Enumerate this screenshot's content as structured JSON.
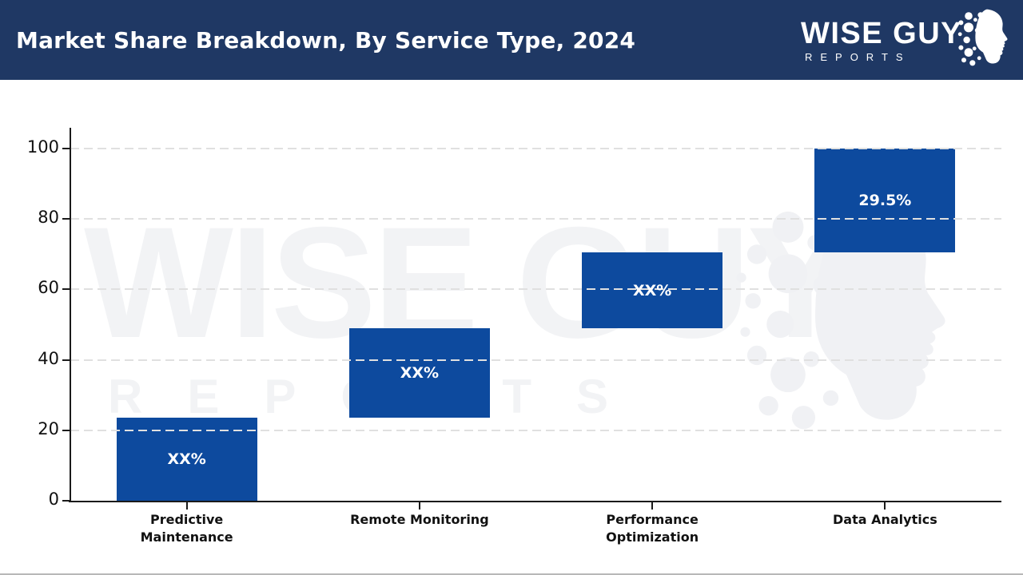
{
  "header": {
    "title": "Market Share Breakdown, By Service Type, 2024",
    "logo": {
      "line1": "WISE GUY",
      "line2": "REPORTS"
    }
  },
  "watermark": {
    "line1": "WISE GUY",
    "line2": "REPORTS"
  },
  "chart_data": {
    "type": "bar",
    "subtype": "waterfall",
    "title": "Market Share Breakdown, By Service Type, 2024",
    "unit": "%",
    "categories": [
      "Predictive Maintenance",
      "Remote Monitoring",
      "Performance Optimization",
      "Data Analytics"
    ],
    "bars": [
      {
        "category": "Predictive Maintenance",
        "tick_label": "Predictive\nMaintenance",
        "label": "XX%",
        "start": 0,
        "end": 23.5
      },
      {
        "category": "Remote Monitoring",
        "tick_label": "Remote Monitoring",
        "label": "XX%",
        "start": 23.5,
        "end": 49
      },
      {
        "category": "Performance Optimization",
        "tick_label": "Performance\nOptimization",
        "label": "XX%",
        "start": 49,
        "end": 70.5
      },
      {
        "category": "Data Analytics",
        "tick_label": "Data Analytics",
        "label": "29.5%",
        "start": 70.5,
        "end": 100
      }
    ],
    "yticks": [
      0,
      20,
      40,
      60,
      80,
      100
    ],
    "ylim": [
      0,
      105
    ],
    "grid": "dashed-horizontal",
    "legend": "none"
  },
  "colors": {
    "header_bg": "#1f3864",
    "header_text": "#ffffff",
    "bar": "#0d4a9e",
    "grid_line": "#e0e0e0",
    "axis": "#1a1a1a",
    "tick_text": "#111111",
    "value_label": "#ffffff",
    "watermark": "#f2f3f5",
    "watermark_graphic": "#f0f1f4"
  }
}
